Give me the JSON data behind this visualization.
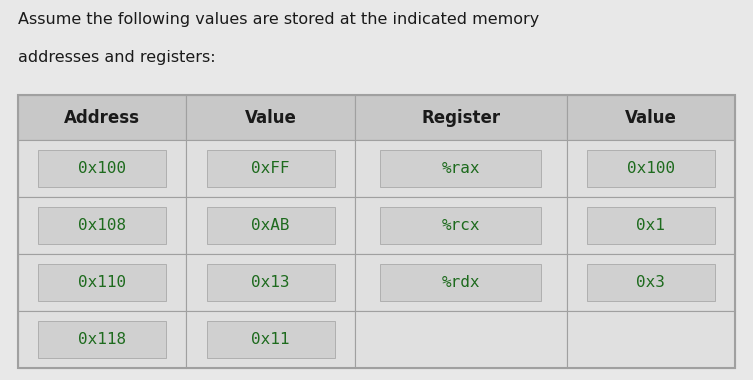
{
  "title_line1": "Assume the following values are stored at the indicated memory",
  "title_line2": "addresses and registers:",
  "headers": [
    "Address",
    "Value",
    "Register",
    "Value"
  ],
  "rows": [
    [
      "0x100",
      "0xFF",
      "%rax",
      "0x100"
    ],
    [
      "0x108",
      "0xAB",
      "%rcx",
      "0x1"
    ],
    [
      "0x110",
      "0x13",
      "%rdx",
      "0x3"
    ],
    [
      "0x118",
      "0x11",
      "",
      ""
    ]
  ],
  "bg_color": "#e8e8e8",
  "header_bg": "#c8c8c8",
  "cell_bg": "#e0e0e0",
  "text_highlight_bg": "#d0d0d0",
  "border_color": "#a0a0a0",
  "text_color": "#1a1a1a",
  "mono_color": "#1e6b1e",
  "title_color": "#1a1a1a",
  "title_fontsize": 11.5,
  "header_fontsize": 12,
  "cell_fontsize": 11.5
}
